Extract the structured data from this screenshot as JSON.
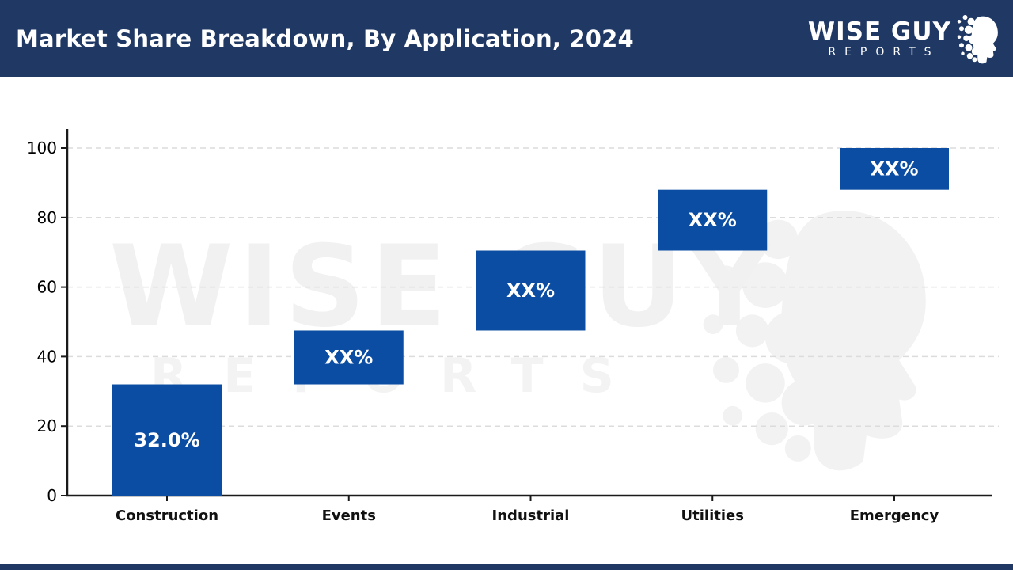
{
  "header": {
    "title": "Market Share Breakdown, By Application, 2024",
    "logo": {
      "line1": "WISE GUY",
      "line2": "REPORTS"
    }
  },
  "watermark": {
    "line1": "WISE GUY",
    "line2": "REPORTS"
  },
  "colors": {
    "header_bg": "#1f3864",
    "footer_bg": "#1f3864",
    "bar": "#0b4da2",
    "bar_label": "#ffffff",
    "grid": "#dcdcdc",
    "axis": "#1a1a1a",
    "tick_label": "#000000",
    "category_label": "#111111",
    "watermark": "#f1f1f1"
  },
  "chart_data": {
    "type": "bar",
    "subtype": "waterfall",
    "title": "Market Share Breakdown, By Application, 2024",
    "categories": [
      "Construction",
      "Events",
      "Industrial",
      "Utilities",
      "Emergency"
    ],
    "segments": [
      {
        "category": "Construction",
        "start": 0,
        "end": 32,
        "value": 32,
        "label": "32.0%"
      },
      {
        "category": "Events",
        "start": 32,
        "end": 47.5,
        "value": 15.5,
        "label": "XX%"
      },
      {
        "category": "Industrial",
        "start": 47.5,
        "end": 70.5,
        "value": 23,
        "label": "XX%"
      },
      {
        "category": "Utilities",
        "start": 70.5,
        "end": 88,
        "value": 17.5,
        "label": "XX%"
      },
      {
        "category": "Emergency",
        "start": 88,
        "end": 100,
        "value": 12,
        "label": "XX%"
      }
    ],
    "xlabel": "",
    "ylabel": "",
    "ylim": [
      0,
      100
    ],
    "yticks": [
      0,
      20,
      40,
      60,
      80,
      100
    ],
    "grid": "horizontal-dashed",
    "legend": null
  }
}
